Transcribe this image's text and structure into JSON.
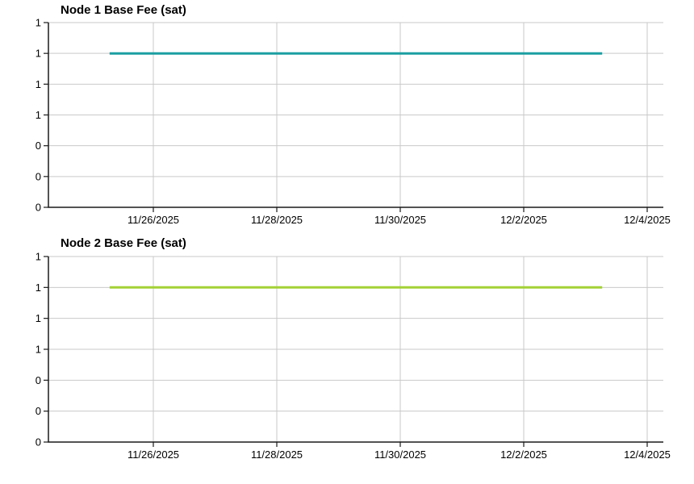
{
  "page": {
    "background": "#ffffff"
  },
  "colors": {
    "axis": "#1a1a1a",
    "grid": "#c9c9c9",
    "label_text": "#000000",
    "title_text": "#000000"
  },
  "chart_data": [
    {
      "type": "line",
      "title": "Node 1 Base Fee (sat)",
      "xlabel": "",
      "ylabel": "",
      "x_tick_labels": [
        "11/26/2025",
        "11/28/2025",
        "11/30/2025",
        "12/2/2025",
        "12/4/2025"
      ],
      "y_tick_labels": [
        "1",
        "1",
        "1",
        "1",
        "0",
        "0",
        "0"
      ],
      "ylim": [
        0,
        1.2
      ],
      "y_tick_values_implied": [
        1.2,
        1.0,
        0.8,
        0.6,
        0.4,
        0.2,
        0
      ],
      "grid": true,
      "legend": "none",
      "series": [
        {
          "name": "Node 1 Base Fee",
          "color": "#1b9fa3",
          "line_width": 3,
          "points": [
            {
              "x": "11/25/2025 07:00",
              "y": 1
            },
            {
              "x": "12/3/2025 06:30",
              "y": 1
            }
          ],
          "note": "constant flat line at 1 sat for the whole period"
        }
      ]
    },
    {
      "type": "line",
      "title": "Node 2 Base Fee (sat)",
      "xlabel": "",
      "ylabel": "",
      "x_tick_labels": [
        "11/26/2025",
        "11/28/2025",
        "11/30/2025",
        "12/2/2025",
        "12/4/2025"
      ],
      "y_tick_labels": [
        "1",
        "1",
        "1",
        "1",
        "0",
        "0",
        "0"
      ],
      "ylim": [
        0,
        1.2
      ],
      "y_tick_values_implied": [
        1.2,
        1.0,
        0.8,
        0.6,
        0.4,
        0.2,
        0
      ],
      "grid": true,
      "legend": "none",
      "series": [
        {
          "name": "Node 2 Base Fee",
          "color": "#a3d136",
          "line_width": 3,
          "points": [
            {
              "x": "11/25/2025 07:00",
              "y": 1
            },
            {
              "x": "12/3/2025 06:30",
              "y": 1
            }
          ],
          "note": "constant flat line at 1 sat for the whole period"
        }
      ]
    }
  ]
}
